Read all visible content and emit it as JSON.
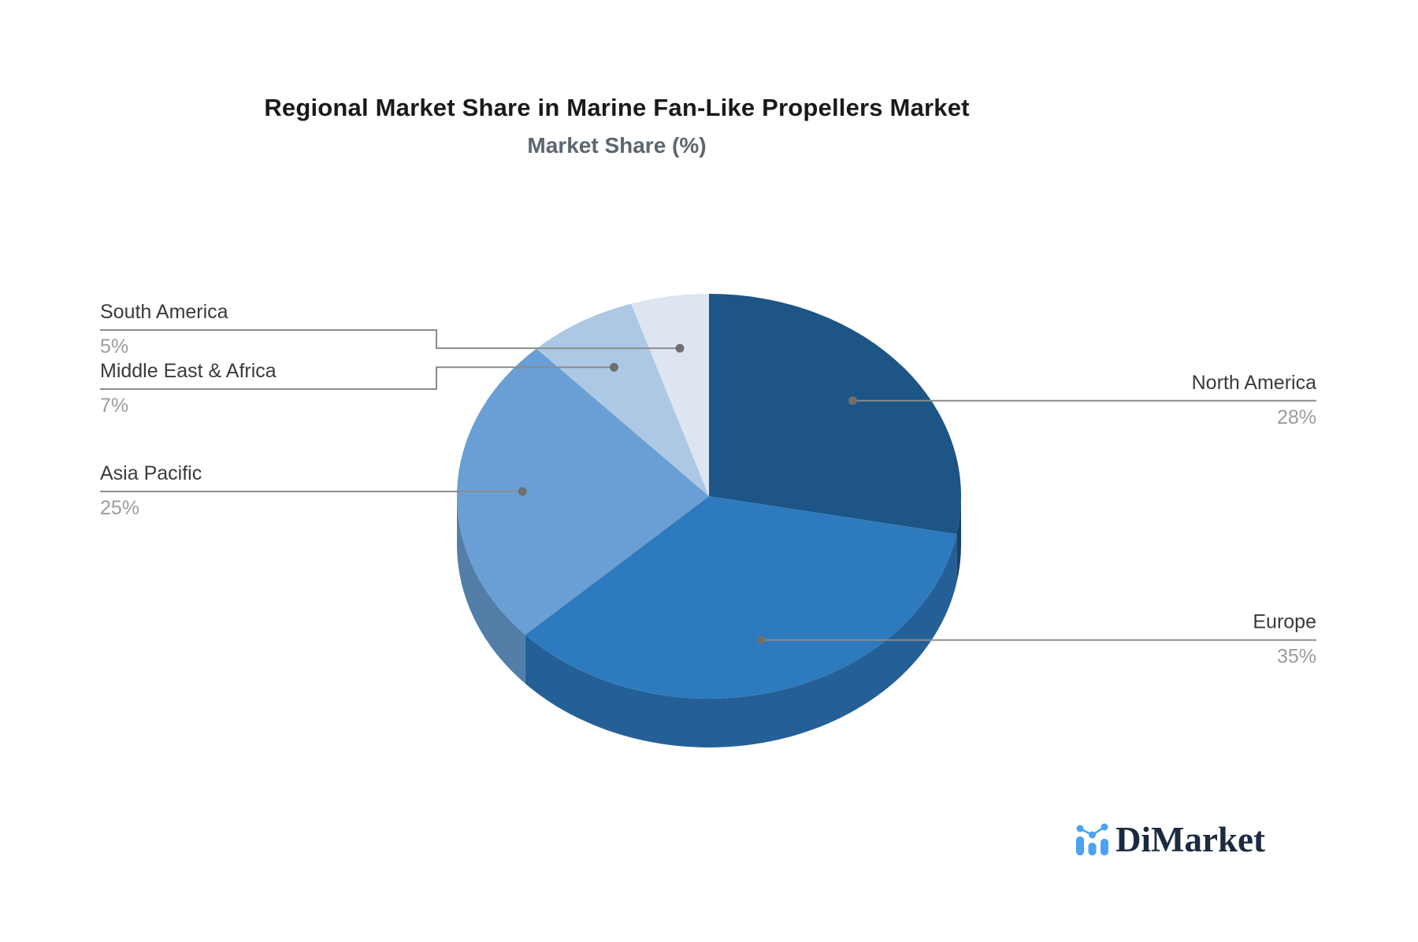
{
  "title": "Regional Market Share in Marine Fan-Like Propellers Market",
  "subtitle": "Market Share (%)",
  "logo": {
    "text": "DiMarket"
  },
  "chart_data": {
    "type": "pie",
    "title": "Regional Market Share in Marine Fan-Like Propellers Market",
    "subtitle": "Market Share (%)",
    "unit": "%",
    "style": "3d",
    "start_angle_deg": 0,
    "direction": "clockwise",
    "labels": [
      "North America",
      "Europe",
      "Asia Pacific",
      "Middle East & Africa",
      "South America"
    ],
    "values": [
      28,
      35,
      25,
      7,
      5
    ],
    "display_values": [
      "28%",
      "35%",
      "25%",
      "7%",
      "5%"
    ],
    "colors": [
      "#1C5586",
      "#2E7ABF",
      "#699FD4",
      "#ACC8E4",
      "#DCE5F0"
    ],
    "leader_line_color": "#8c8c8c",
    "leader_dot_color": "#6f6f6f",
    "label_color": "#3a3a3a",
    "value_color": "#9c9c9c",
    "legend_position": "none",
    "background_color": "#ffffff"
  }
}
